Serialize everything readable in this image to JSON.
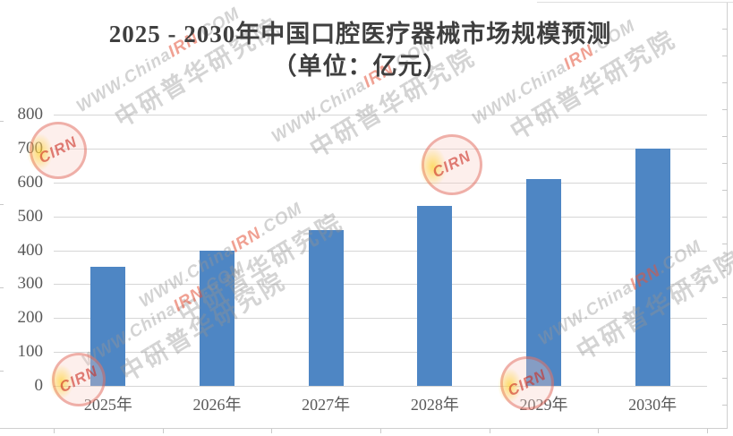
{
  "chart_data": {
    "type": "bar",
    "title": "2025 - 2030年中国口腔医疗器械市场规模预测",
    "subtitle": "（单位：亿元）",
    "categories": [
      "2025年",
      "2026年",
      "2027年",
      "2028年",
      "2029年",
      "2030年"
    ],
    "values": [
      350,
      400,
      460,
      530,
      610,
      700
    ],
    "ylim": [
      0,
      800
    ],
    "yticks": [
      0,
      100,
      200,
      300,
      400,
      500,
      600,
      700,
      800
    ],
    "xlabel": "",
    "ylabel": "",
    "grid": true,
    "legend": "none",
    "bar_color": "#4E86C4"
  },
  "watermark": {
    "site_prefix": "WWW.China",
    "site_highlight": "IRN",
    "site_suffix": ".COM",
    "org_name": "中研普华研究院",
    "stamp_text": "CIRN"
  },
  "colors": {
    "bar": "#4E86C4",
    "gridline": "#D6D6D6",
    "axis_text": "#595959",
    "title_text": "#3F3F3F",
    "watermark_red": "#E4543A"
  }
}
